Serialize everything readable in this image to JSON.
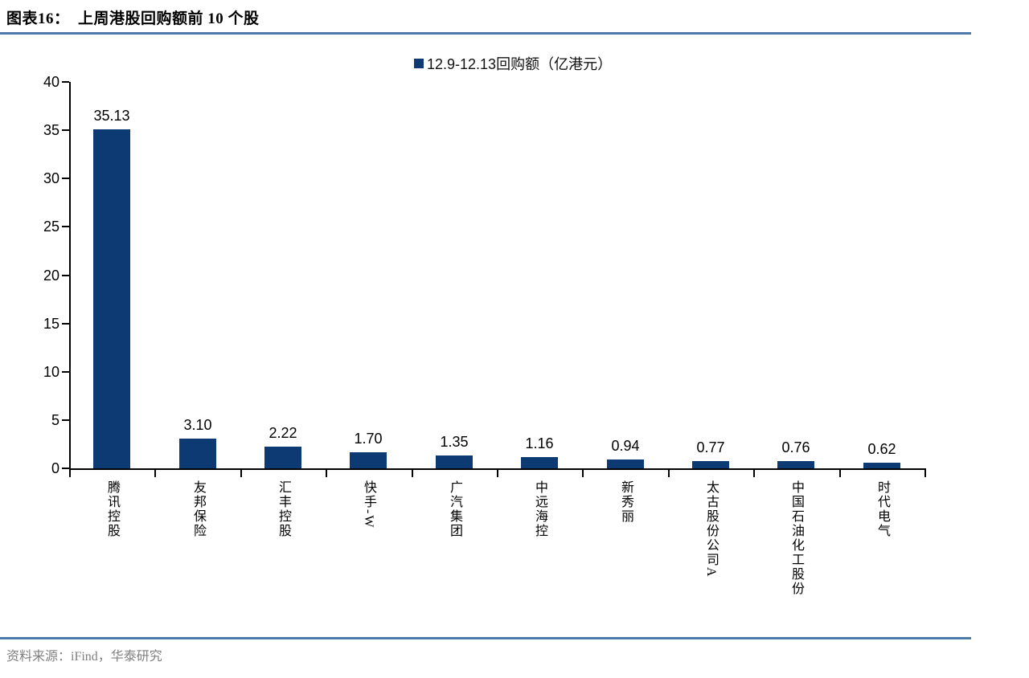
{
  "title": "图表16：  上周港股回购额前 10 个股",
  "legend": {
    "label": "12.9-12.13回购额（亿港元）"
  },
  "source": "资料来源：iFind，华泰研究",
  "colors": {
    "bar": "#0e3a74",
    "rule": "#4e79ab",
    "axis": "#000000",
    "source_text": "#808080"
  },
  "chart_data": {
    "type": "bar",
    "title": "上周港股回购额前 10 个股",
    "series_name": "12.9-12.13回购额（亿港元）",
    "categories": [
      "腾讯控股",
      "友邦保险",
      "汇丰控股",
      "快手-W",
      "广汽集团",
      "中远海控",
      "新秀丽",
      "太古股份公司A",
      "中国石油化工股份",
      "时代电气"
    ],
    "values": [
      35.13,
      3.1,
      2.22,
      1.7,
      1.35,
      1.16,
      0.94,
      0.77,
      0.76,
      0.62
    ],
    "value_labels": [
      "35.13",
      "3.10",
      "2.22",
      "1.70",
      "1.35",
      "1.16",
      "0.94",
      "0.77",
      "0.76",
      "0.62"
    ],
    "xlabel": "",
    "ylabel": "",
    "ylim": [
      0,
      40
    ],
    "yticks": [
      0,
      5,
      10,
      15,
      20,
      25,
      30,
      35,
      40
    ],
    "grid": false,
    "legend_position": "top-center"
  }
}
